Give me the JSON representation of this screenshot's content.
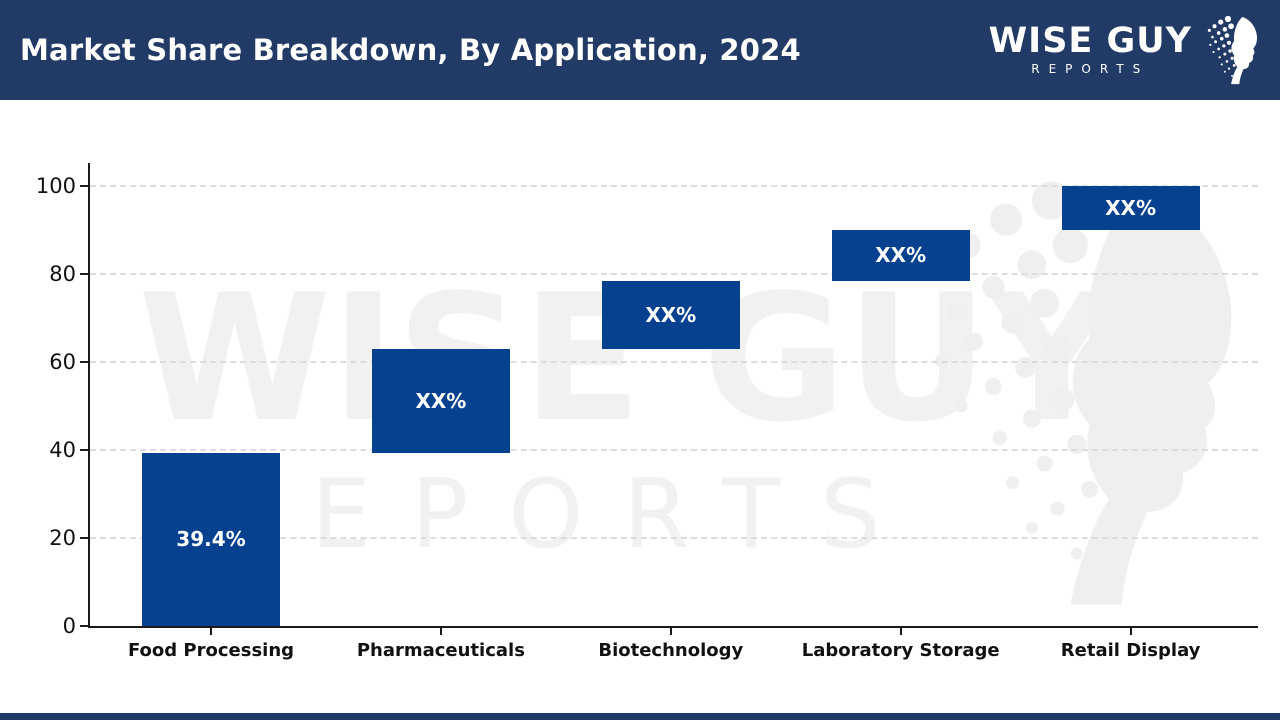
{
  "header": {
    "title": "Market Share Breakdown, By Application, 2024",
    "logo": {
      "name_line": "WISE GUY",
      "sub_line": "REPORTS"
    }
  },
  "watermark": {
    "name_line": "WISE GUY",
    "sub_line": "REPORTS"
  },
  "colors": {
    "header_bg": "#223a66",
    "footer_bg": "#223a66",
    "bar": "#05418f",
    "grid": "#dcdcdc",
    "axis": "#1a1a1a",
    "bar_label": "#ffffff",
    "watermark": "#f1f1f1"
  },
  "chart_data": {
    "type": "bar",
    "variant": "floating-waterfall",
    "title": "Market Share Breakdown, By Application, 2024",
    "categories": [
      "Food Processing",
      "Pharmaceuticals",
      "Biotechnology",
      "Laboratory Storage",
      "Retail Display"
    ],
    "segments": [
      {
        "category": "Food Processing",
        "start": 0,
        "end": 39.4,
        "label": "39.4%"
      },
      {
        "category": "Pharmaceuticals",
        "start": 39.4,
        "end": 63,
        "label": "XX%"
      },
      {
        "category": "Biotechnology",
        "start": 63,
        "end": 78.5,
        "label": "XX%"
      },
      {
        "category": "Laboratory Storage",
        "start": 78.5,
        "end": 90,
        "label": "XX%"
      },
      {
        "category": "Retail Display",
        "start": 90,
        "end": 100,
        "label": "XX%"
      }
    ],
    "yticks": [
      0,
      20,
      40,
      60,
      80,
      100
    ],
    "ylim": [
      0,
      105
    ],
    "xlabel": "",
    "ylabel": "",
    "grid": "horizontal-dashed",
    "legend": "none"
  }
}
